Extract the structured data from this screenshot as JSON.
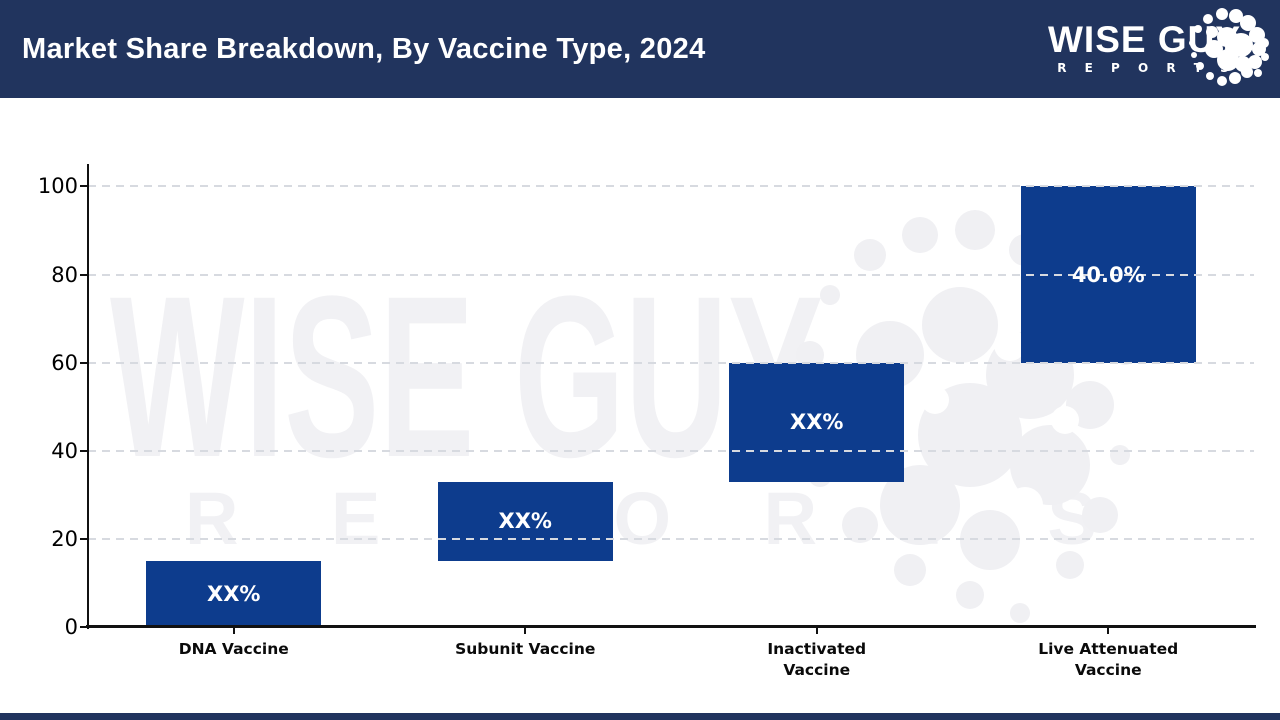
{
  "header": {
    "title": "Market Share Breakdown, By Vaccine Type, 2024",
    "logo": {
      "primary": "WISE GUY",
      "secondary": "R E P O R T S"
    }
  },
  "watermark": {
    "primary": "WISE GUY",
    "secondary": "R E P O R T S"
  },
  "chart_data": {
    "type": "bar",
    "subtype": "waterfall",
    "title": "Market Share Breakdown, By Vaccine Type, 2024",
    "categories": [
      "DNA Vaccine",
      "Subunit Vaccine",
      "Inactivated Vaccine",
      "Live Attenuated Vaccine"
    ],
    "category_lines": [
      [
        "DNA Vaccine"
      ],
      [
        "Subunit Vaccine"
      ],
      [
        "Inactivated",
        "Vaccine"
      ],
      [
        "Live Attenuated",
        "Vaccine"
      ]
    ],
    "segments": [
      {
        "category": "DNA Vaccine",
        "start": 0,
        "end": 15,
        "increment": 15,
        "label": "XX%"
      },
      {
        "category": "Subunit Vaccine",
        "start": 15,
        "end": 33,
        "increment": 18,
        "label": "XX%"
      },
      {
        "category": "Inactivated Vaccine",
        "start": 33,
        "end": 60,
        "increment": 27,
        "label": "XX%"
      },
      {
        "category": "Live Attenuated Vaccine",
        "start": 60,
        "end": 100,
        "increment": 40,
        "label": "40.0%"
      }
    ],
    "yticks": [
      0,
      20,
      40,
      60,
      80,
      100
    ],
    "ylim": [
      0,
      105
    ],
    "xlabel": "",
    "ylabel": "",
    "grid": "horizontal-dashed",
    "legend": "none"
  },
  "colors": {
    "header_bg": "#21345e",
    "footer_bg": "#21345e",
    "bar": "#0d3c8d",
    "bar_label_text": "#ffffff",
    "axis": "#111111",
    "grid": "#d7dae0",
    "watermark": "#f1f1f4",
    "title_text": "#ffffff"
  }
}
